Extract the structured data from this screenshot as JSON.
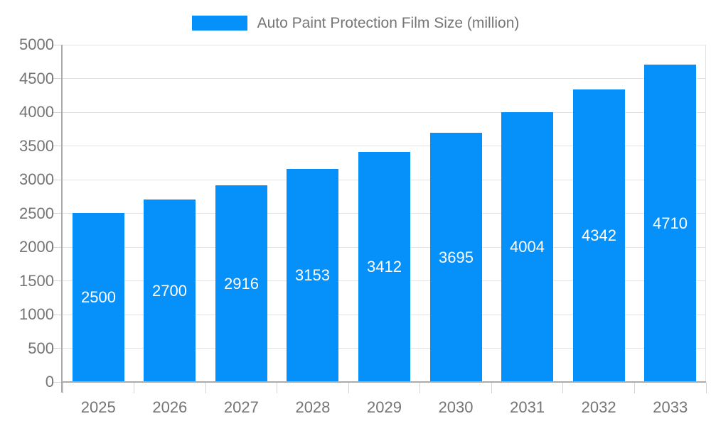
{
  "chart_data": {
    "type": "bar",
    "title": "Auto Paint Protection Film Size (million)",
    "categories": [
      "2025",
      "2026",
      "2027",
      "2028",
      "2029",
      "2030",
      "2031",
      "2032",
      "2033"
    ],
    "values": [
      2500,
      2700,
      2916,
      3153,
      3412,
      3695,
      4004,
      4342,
      4710
    ],
    "xlabel": "",
    "ylabel": "",
    "ylim": [
      0,
      5000
    ],
    "ytick_step": 500,
    "ytick_labels": [
      "0",
      "500",
      "1000",
      "1500",
      "2000",
      "2500",
      "3000",
      "3500",
      "4000",
      "4500",
      "5000"
    ],
    "grid": true,
    "legend_position": "top-center",
    "bar_value_labels": "inside-center"
  },
  "colors": {
    "bar": "#0590FA",
    "bar_label": "#FFFFFF",
    "axis_label": "#757575",
    "legend_text": "#757575",
    "gridline": "#E3E3E3",
    "axis_line": "#ABABAB",
    "tick": "#D4D4D4",
    "background": "#FFFFFF"
  }
}
